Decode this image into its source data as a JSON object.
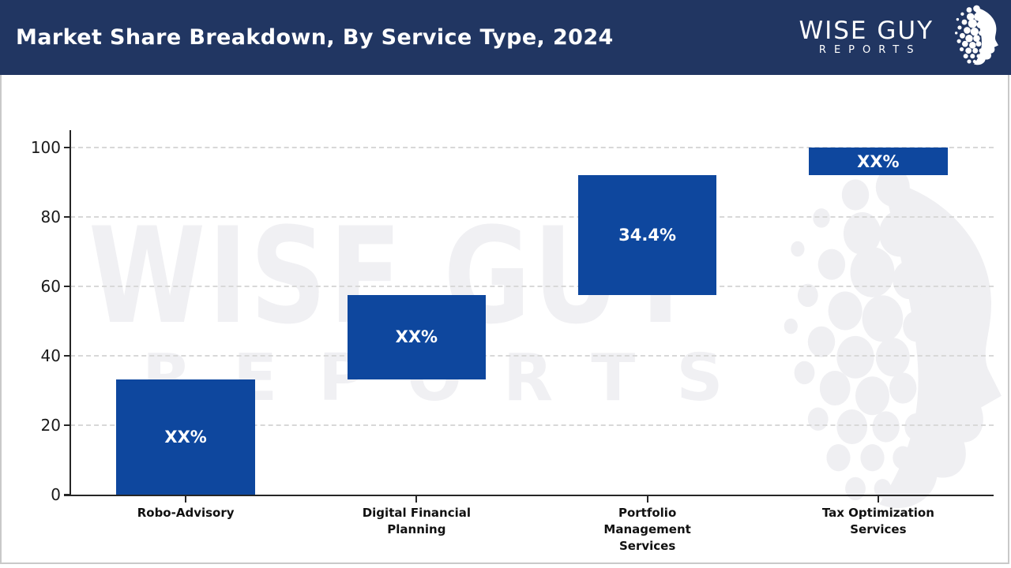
{
  "header": {
    "title": "Market Share Breakdown, By Service Type, 2024",
    "logo": {
      "wordmark": "WISE GUY",
      "subtext": "REPORTS"
    }
  },
  "watermark": {
    "line1": "WISE GUY",
    "line2": "REPORTS"
  },
  "chart_data": {
    "type": "bar",
    "subtype": "waterfall",
    "title": "Market Share Breakdown, By Service Type, 2024",
    "categories": [
      "Robo-Advisory",
      "Digital Financial Planning",
      "Portfolio Management Services",
      "Tax Optimization Services"
    ],
    "category_lines": [
      [
        "Robo-Advisory"
      ],
      [
        "Digital Financial",
        "Planning"
      ],
      [
        "Portfolio",
        "Management",
        "Services"
      ],
      [
        "Tax Optimization",
        "Services"
      ]
    ],
    "segments": [
      {
        "category": "Robo-Advisory",
        "start": 0,
        "end": 33.1,
        "value": 33.1,
        "label": "XX%"
      },
      {
        "category": "Digital Financial Planning",
        "start": 33.1,
        "end": 57.6,
        "value": 24.5,
        "label": "XX%"
      },
      {
        "category": "Portfolio Management Services",
        "start": 57.6,
        "end": 92.0,
        "value": 34.4,
        "label": "34.4%"
      },
      {
        "category": "Tax Optimization Services",
        "start": 92.0,
        "end": 100,
        "value": 8.0,
        "label": "XX%"
      }
    ],
    "xlabel": "",
    "ylabel": "",
    "ylim": [
      0,
      100
    ],
    "yticks": [
      0,
      20,
      40,
      60,
      80,
      100
    ],
    "grid": "horizontal-dashed",
    "legend": "none",
    "bar_color": "#0e479e",
    "bar_label_color": "#ffffff"
  },
  "colors": {
    "header_bg": "#213662",
    "bar_blue": "#0e479e",
    "axis": "#262626",
    "gridline": "#d8d8d8",
    "watermark": "#f0f0f3",
    "border": "#c9c9c9"
  }
}
